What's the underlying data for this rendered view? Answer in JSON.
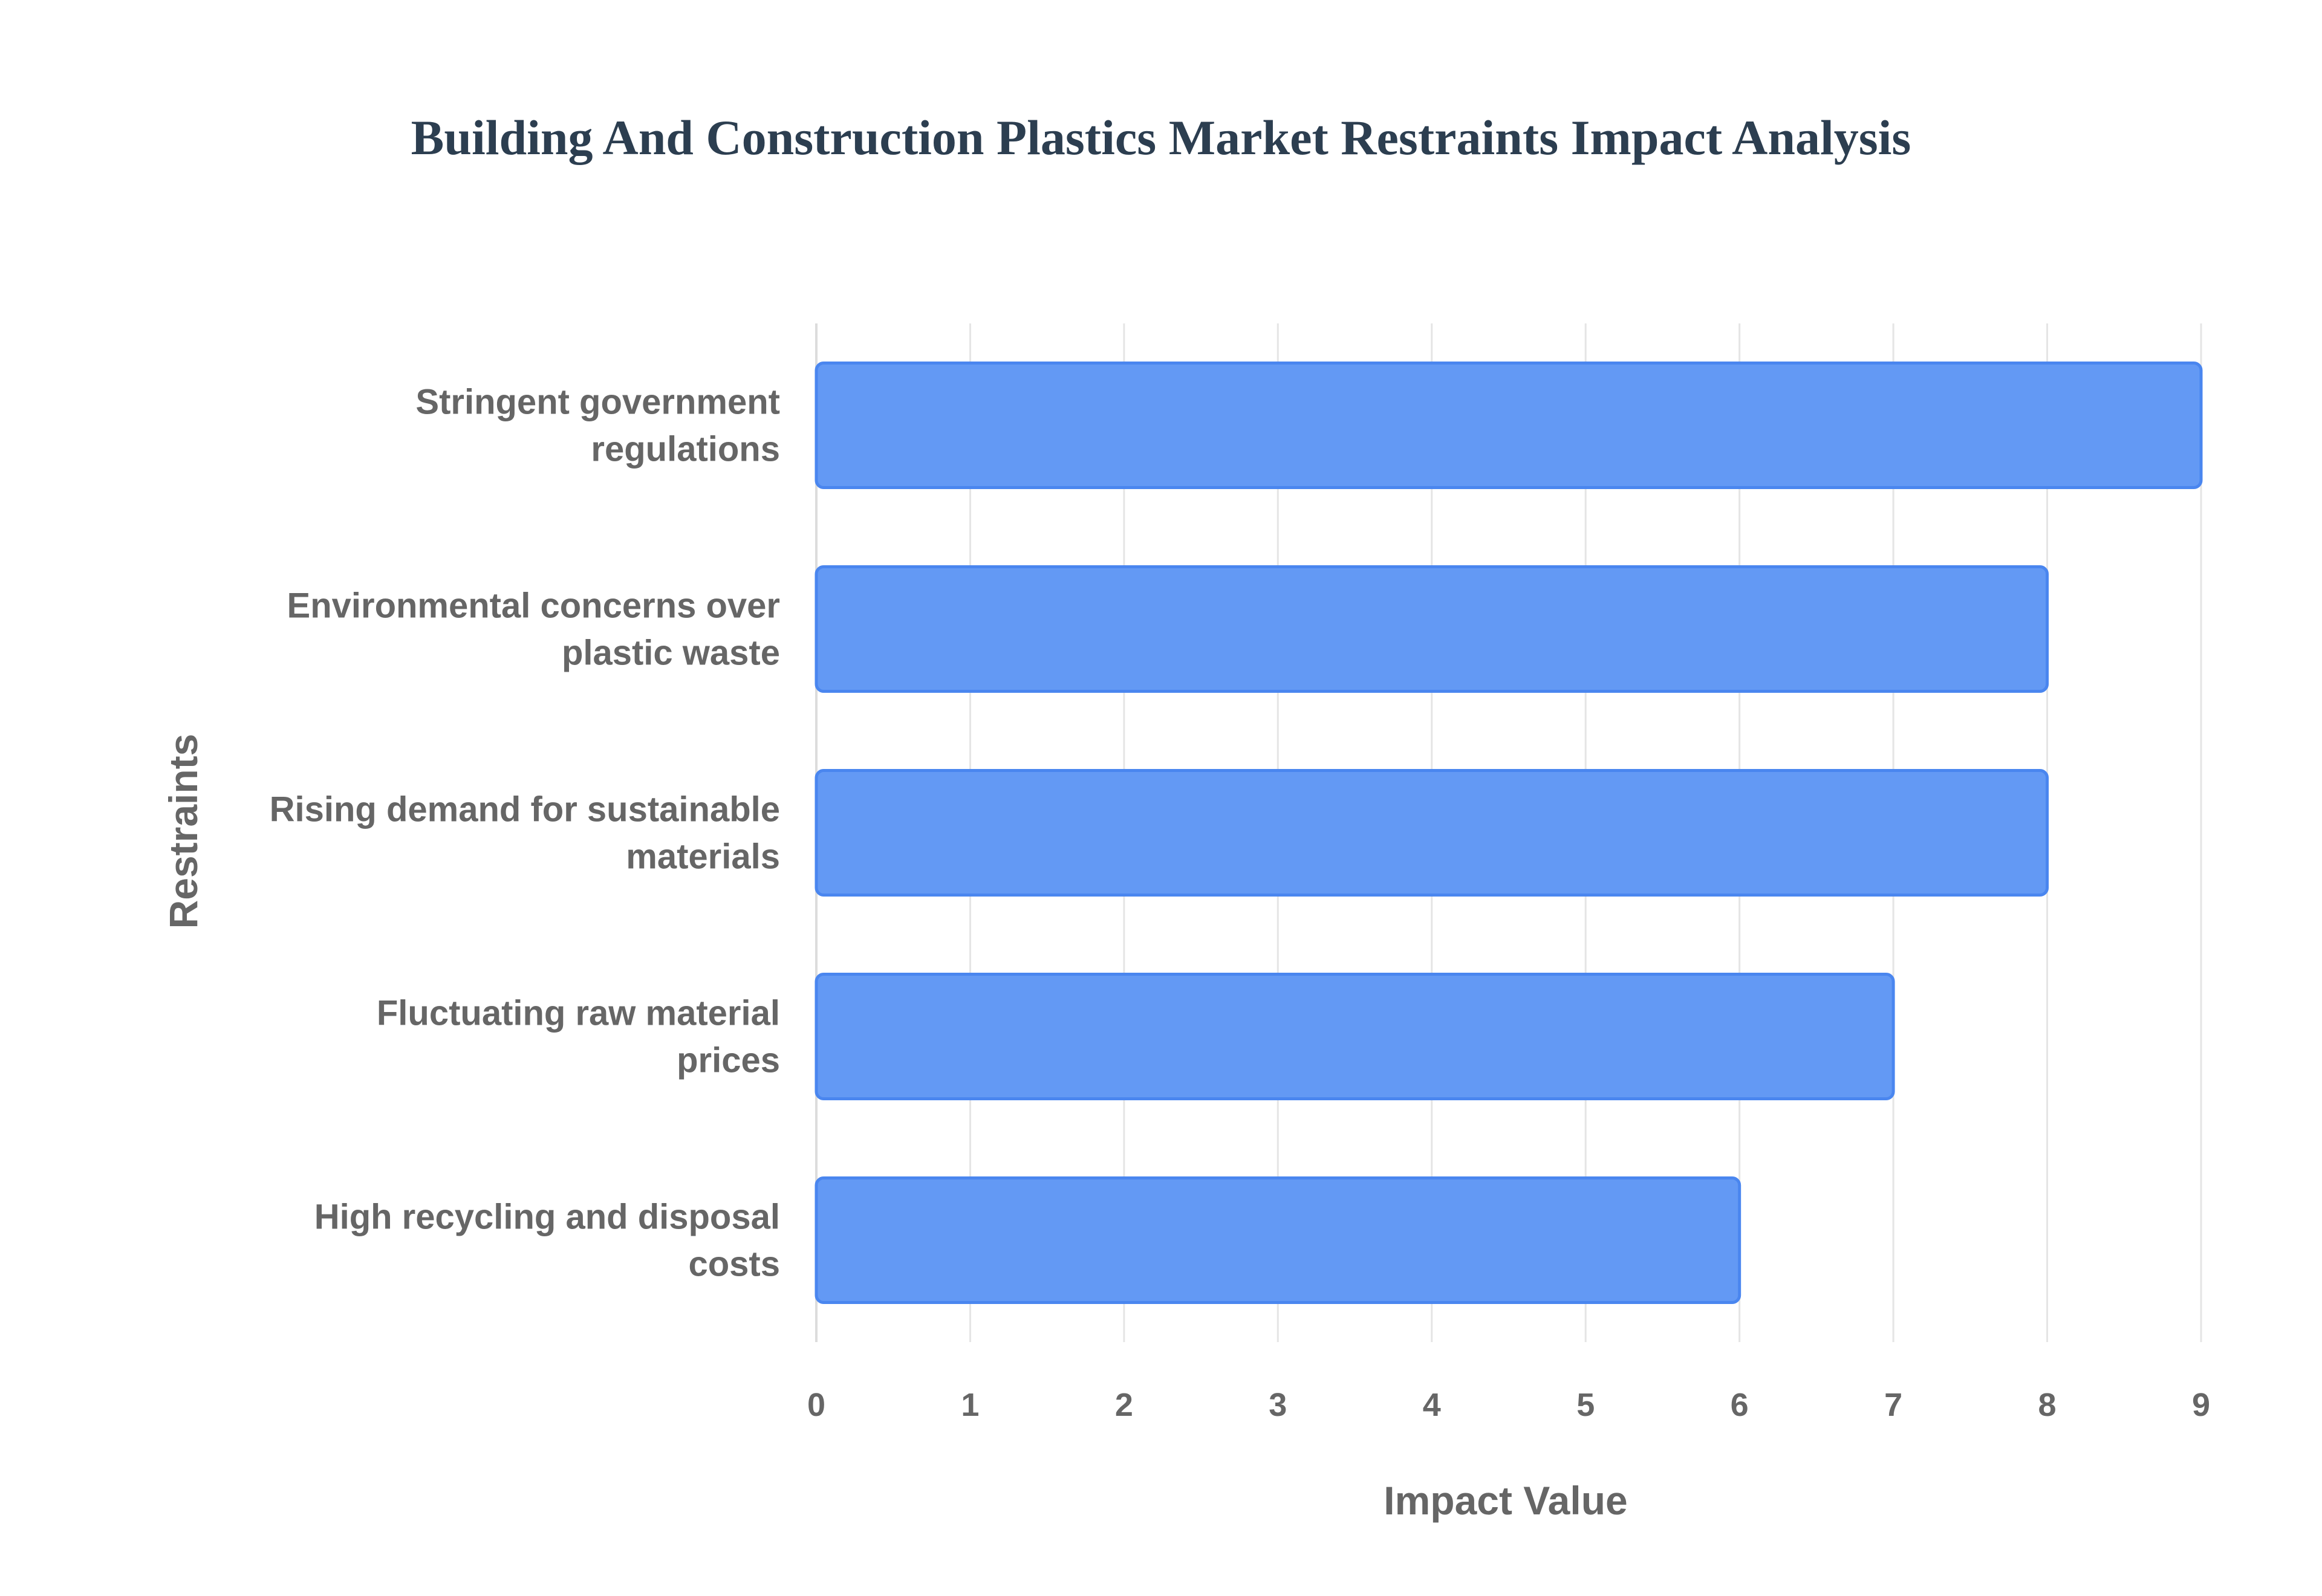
{
  "chart_data": {
    "type": "bar",
    "orientation": "horizontal",
    "title": "Building And Construction Plastics Market Restraints Impact Analysis",
    "xlabel": "Impact Value",
    "ylabel": "Restraints",
    "xlim": [
      0,
      9
    ],
    "xticks": [
      "0",
      "1",
      "2",
      "3",
      "4",
      "5",
      "6",
      "7",
      "8",
      "9"
    ],
    "grid": true,
    "legend": "none",
    "categories": [
      [
        "Stringent government",
        "regulations"
      ],
      [
        "Environmental concerns over",
        "plastic waste"
      ],
      [
        "Rising demand for sustainable",
        "materials"
      ],
      [
        "Fluctuating raw material",
        "prices"
      ],
      [
        "High recycling and disposal",
        "costs"
      ]
    ],
    "values": [
      9,
      8,
      8,
      7,
      6
    ],
    "colors": {
      "bar_fill": "#6399f4",
      "bar_stroke": "#4a86ef",
      "title": "#2c3e50",
      "text": "#666666",
      "grid": "#e5e5e5"
    }
  }
}
